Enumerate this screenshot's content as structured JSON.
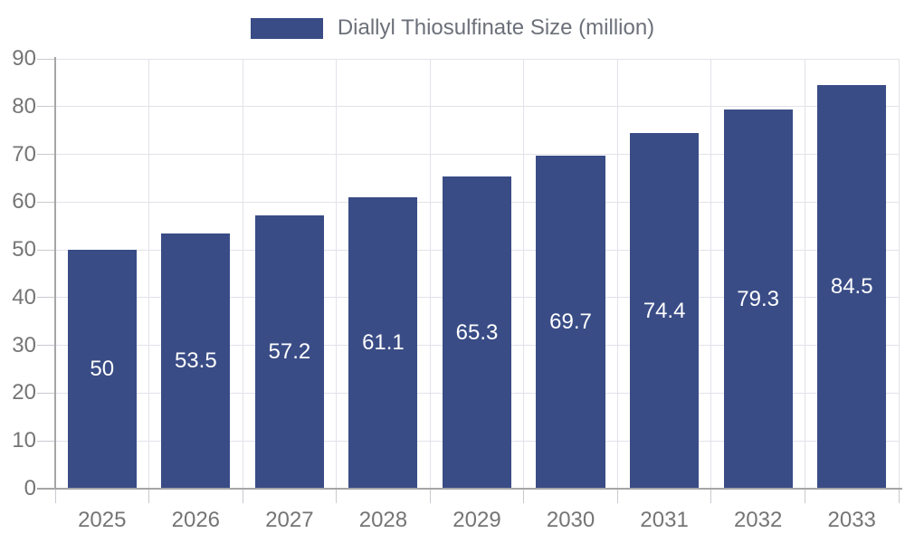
{
  "chart_data": {
    "type": "bar",
    "title": "Diallyl Thiosulfinate Size (million)",
    "legend_position": "top-center",
    "categories": [
      "2025",
      "2026",
      "2027",
      "2028",
      "2029",
      "2030",
      "2031",
      "2032",
      "2033"
    ],
    "series": [
      {
        "name": "Diallyl Thiosulfinate Size (million)",
        "values": [
          50,
          53.5,
          57.2,
          61.1,
          65.3,
          69.7,
          74.4,
          79.3,
          84.5
        ],
        "value_labels": [
          "50",
          "53.5",
          "57.2",
          "61.1",
          "65.3",
          "69.7",
          "74.4",
          "79.3",
          "84.5"
        ]
      }
    ],
    "xlabel": "",
    "ylabel": "",
    "ylim": [
      0,
      90
    ],
    "ytick_interval": 10,
    "ytick_labels": [
      "0",
      "10",
      "20",
      "30",
      "40",
      "50",
      "60",
      "70",
      "80",
      "90"
    ],
    "grid": true,
    "value_label_position": "inside-center"
  },
  "style": {
    "bar_color": "#394C86",
    "grid_color": "#E2E2EA",
    "tick_color": "#C9C9D0",
    "axis_color": "#A6A6A6",
    "axis_text_color": "#757575",
    "legend_text_color": "#6C7079",
    "bar_label_color": "#FFFFFF",
    "background_color": "#FFFFFF"
  }
}
